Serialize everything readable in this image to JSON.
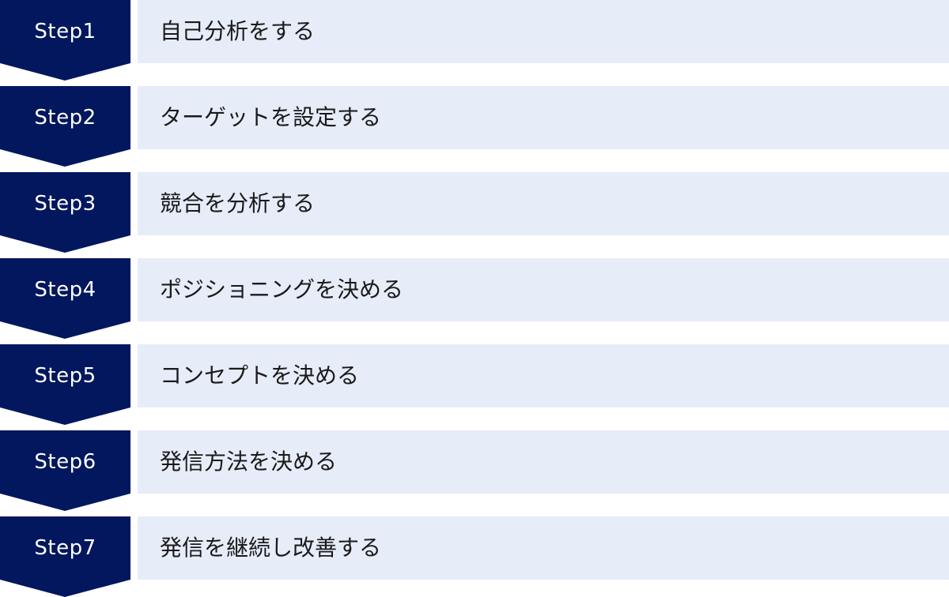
{
  "colors": {
    "badge": "#02175e",
    "bar": "#e6ecf8"
  },
  "steps": [
    {
      "label": "Step1",
      "text": "自己分析をする"
    },
    {
      "label": "Step2",
      "text": "ターゲットを設定する"
    },
    {
      "label": "Step3",
      "text": "競合を分析する"
    },
    {
      "label": "Step4",
      "text": "ポジショニングを決める"
    },
    {
      "label": "Step5",
      "text": "コンセプトを決める"
    },
    {
      "label": "Step6",
      "text": "発信方法を決める"
    },
    {
      "label": "Step7",
      "text": "発信を継続し改善する"
    }
  ]
}
